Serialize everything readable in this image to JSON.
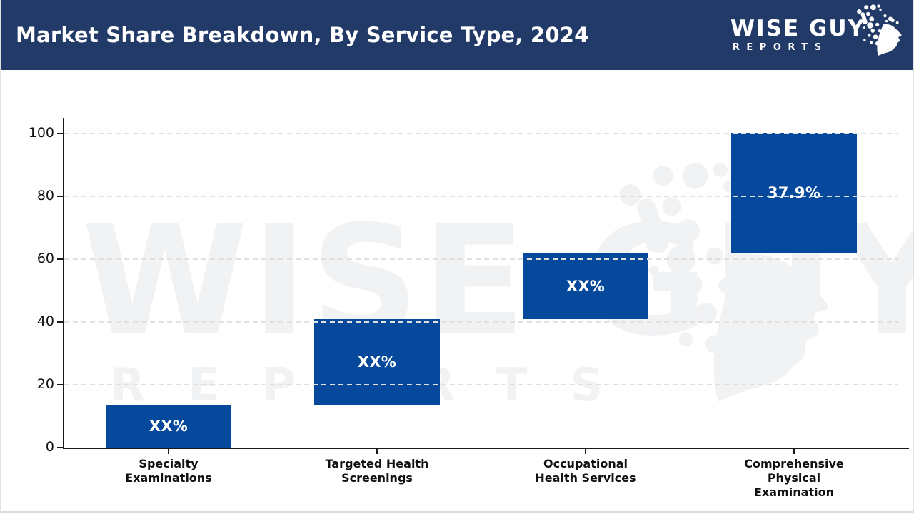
{
  "header": {
    "title": "Market Share Breakdown, By Service Type, 2024",
    "logo": {
      "line1": "WISE GUY",
      "line2": "REPORTS"
    }
  },
  "watermark": {
    "line1": "WISE GUY",
    "line2": "REPORTS"
  },
  "chart_data": {
    "type": "bar",
    "subtype": "waterfall",
    "title": "Market Share Breakdown, By Service Type, 2024",
    "categories": [
      "Specialty\nExaminations",
      "Targeted Health\nScreenings",
      "Occupational\nHealth Services",
      "Comprehensive\nPhysical\nExamination"
    ],
    "series": [
      {
        "name": "Market share (%)",
        "segments": [
          {
            "category": "Specialty Examinations",
            "start": 0,
            "end": 13.6,
            "value_label": "XX%"
          },
          {
            "category": "Targeted Health Screenings",
            "start": 13.6,
            "end": 40.8,
            "value_label": "XX%"
          },
          {
            "category": "Occupational Health Services",
            "start": 40.8,
            "end": 62.1,
            "value_label": "XX%"
          },
          {
            "category": "Comprehensive Physical Examination",
            "start": 62.1,
            "end": 100,
            "value_label": "37.9%"
          }
        ]
      }
    ],
    "xlabel": "",
    "ylabel": "",
    "ylim": [
      0,
      105
    ],
    "yticks": [
      0,
      20,
      40,
      60,
      80,
      100
    ],
    "grid": "horizontal-dashed",
    "legend": "none"
  },
  "colors": {
    "header_bg": "#213a67",
    "bar": "#05489c",
    "bar_label": "#ffffff",
    "grid": "#e0e0e0",
    "axis": "#1a1a1a",
    "watermark": "#f1f2f4",
    "page_bg": "#ffffff"
  }
}
